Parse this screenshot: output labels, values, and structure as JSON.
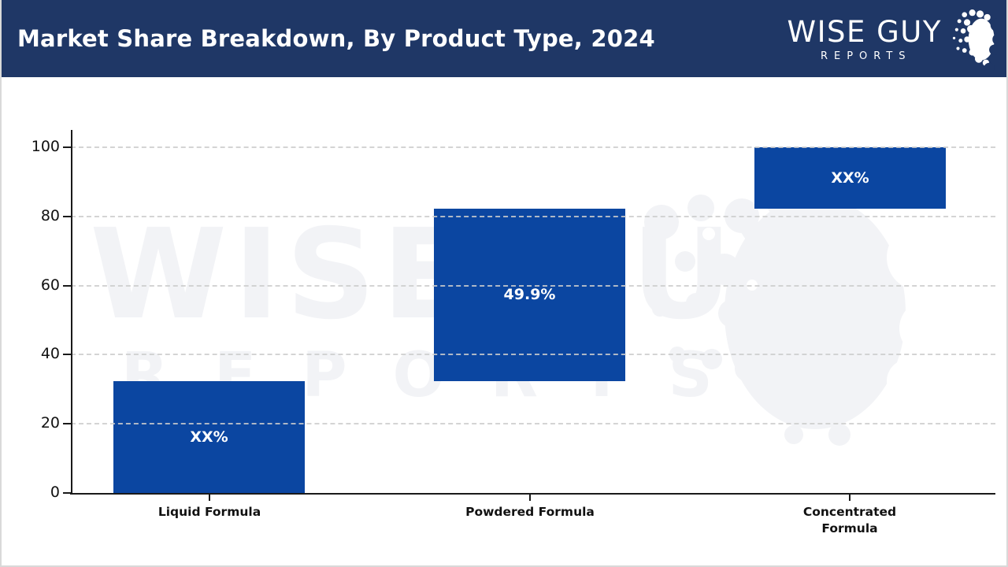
{
  "header": {
    "title": "Market Share Breakdown, By Product Type, 2024",
    "logo": {
      "brand_line1": "WISE GUY",
      "brand_line2": "REPORTS"
    }
  },
  "watermark": {
    "line1": "WISE GUY",
    "line2": "REPORTS"
  },
  "colors": {
    "header_bg": "#1f3766",
    "bar": "#0b46a1",
    "grid": "#d8d8d8",
    "axis": "#1a1a1a",
    "on_bar_text": "#ffffff",
    "tick_text": "#111111",
    "watermark": "#f2f3f6"
  },
  "chart_data": {
    "type": "bar",
    "subtype": "floating-segment (waterfall-style market share breakdown)",
    "title": "Market Share Breakdown, By Product Type, 2024",
    "categories": [
      "Liquid Formula",
      "Powdered Formula",
      "Concentrated Formula"
    ],
    "segments": [
      {
        "category": "Liquid Formula",
        "start": 0,
        "end": 32.4,
        "label": "XX%",
        "value_shown": "XX%"
      },
      {
        "category": "Powdered Formula",
        "start": 32.4,
        "end": 82.3,
        "label": "49.9%",
        "value_shown": "49.9%"
      },
      {
        "category": "Concentrated Formula",
        "start": 82.3,
        "end": 100,
        "label": "XX%",
        "value_shown": "XX%"
      }
    ],
    "yticks": [
      0,
      20,
      40,
      60,
      80,
      100
    ],
    "ylim": [
      0,
      105
    ],
    "xlabel": "",
    "ylabel": "",
    "grid": "horizontal dashed, drawn above bars",
    "legend": "none",
    "bar_color": "#0b46a1"
  }
}
